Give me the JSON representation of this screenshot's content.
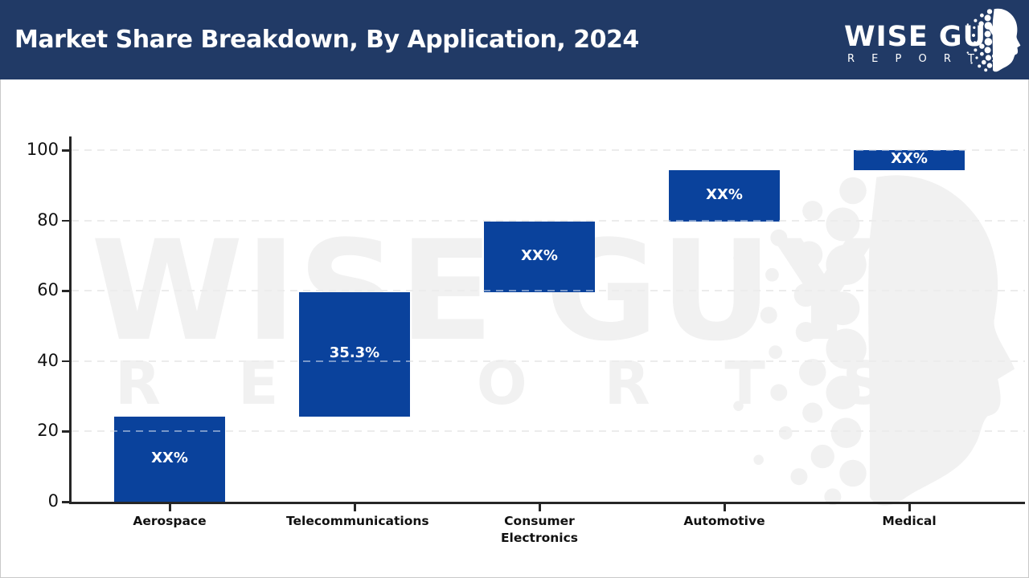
{
  "header": {
    "title": "Market Share Breakdown, By Application, 2024",
    "logo": {
      "line1": "WISE GUY",
      "line2": "R E P O R T S"
    },
    "background_color": "#213a66"
  },
  "watermark": {
    "line1": "WISE GUY",
    "line2": "REPORTS"
  },
  "chart_data": {
    "type": "bar",
    "subtype": "waterfall",
    "title": "Market Share Breakdown, By Application, 2024",
    "xlabel": "",
    "ylabel": "",
    "ylim": [
      0,
      104
    ],
    "yticks": [
      0,
      20,
      40,
      60,
      80,
      100
    ],
    "grid": "horizontal dashed",
    "legend": "none",
    "bar_color": "#0a429c",
    "bar_label_color": "#ffffff",
    "categories": [
      {
        "lines": [
          "Aerospace"
        ]
      },
      {
        "lines": [
          "Telecommunications"
        ]
      },
      {
        "lines": [
          "Consumer",
          "Electronics"
        ]
      },
      {
        "lines": [
          "Automotive"
        ]
      },
      {
        "lines": [
          "Medical"
        ]
      }
    ],
    "segments": [
      {
        "category": "Aerospace",
        "start": 0,
        "end": 24.3,
        "value_shown": "XX%"
      },
      {
        "category": "Telecommunications",
        "start": 24.3,
        "end": 59.6,
        "value_shown": "35.3%"
      },
      {
        "category": "Consumer Electronics",
        "start": 59.6,
        "end": 79.6,
        "value_shown": "XX%"
      },
      {
        "category": "Automotive",
        "start": 79.6,
        "end": 94.3,
        "value_shown": "XX%"
      },
      {
        "category": "Medical",
        "start": 94.3,
        "end": 100.0,
        "value_shown": "XX%"
      }
    ]
  }
}
